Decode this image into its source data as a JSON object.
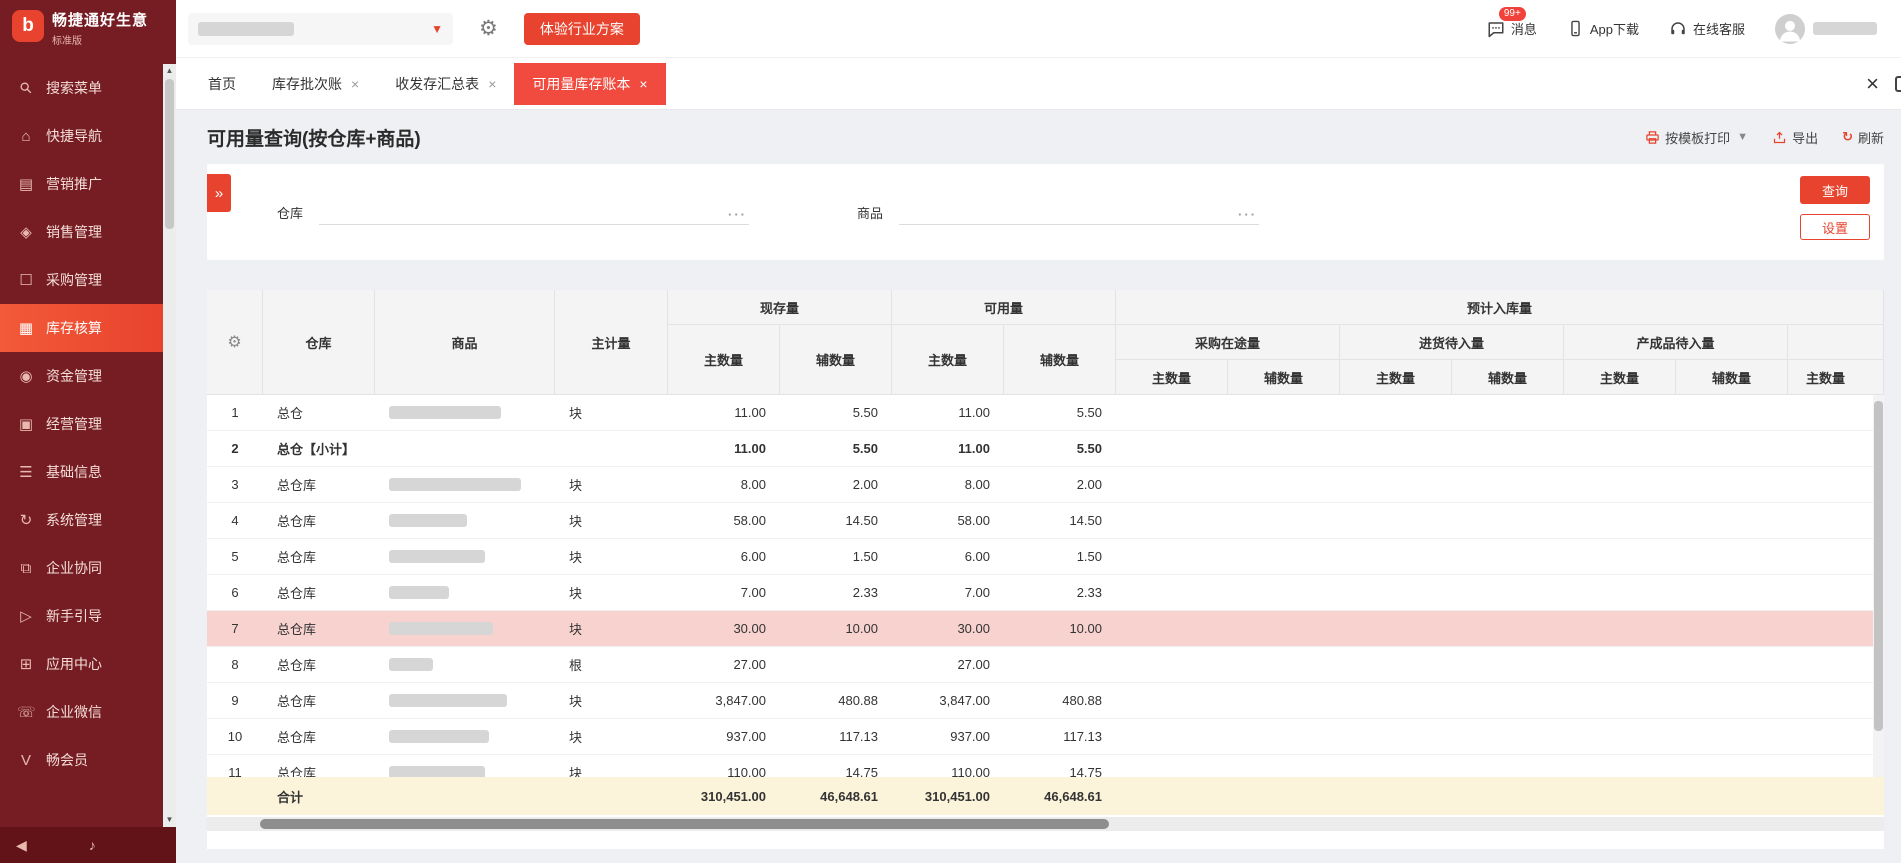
{
  "colors": {
    "accent": "#e8432e",
    "sidebar_bg": "#761d23",
    "active_tab": "#f04b3e",
    "highlight_row": "#f7d2cf",
    "total_row_bg": "#fcf4da"
  },
  "sidebar": {
    "logo_title": "畅捷通好生意",
    "logo_badge": "标准版",
    "items": [
      {
        "name": "search-menu",
        "label": "搜索菜单"
      },
      {
        "name": "quick-nav",
        "label": "快捷导航"
      },
      {
        "name": "marketing",
        "label": "营销推广"
      },
      {
        "name": "sales",
        "label": "销售管理"
      },
      {
        "name": "purchase",
        "label": "采购管理"
      },
      {
        "name": "inventory-accounting",
        "label": "库存核算",
        "active": true
      },
      {
        "name": "funds",
        "label": "资金管理"
      },
      {
        "name": "operations",
        "label": "经营管理"
      },
      {
        "name": "basic-info",
        "label": "基础信息"
      },
      {
        "name": "system",
        "label": "系统管理"
      },
      {
        "name": "enterprise-collab",
        "label": "企业协同"
      },
      {
        "name": "beginner-guide",
        "label": "新手引导"
      },
      {
        "name": "app-center",
        "label": "应用中心"
      },
      {
        "name": "enterprise-wechat",
        "label": "企业微信"
      },
      {
        "name": "member",
        "label": "畅会员"
      }
    ]
  },
  "topbar": {
    "trial_button": "体验行业方案",
    "messages_label": "消息",
    "messages_badge": "99+",
    "app_download_label": "App下载",
    "support_label": "在线客服"
  },
  "tabs": [
    {
      "label": "首页"
    },
    {
      "label": "库存批次账"
    },
    {
      "label": "收发存汇总表"
    },
    {
      "label": "可用量库存账本"
    }
  ],
  "page": {
    "title": "可用量查询(按仓库+商品)",
    "print_label": "按模板打印",
    "export_label": "导出",
    "refresh_label": "刷新"
  },
  "filters": {
    "warehouse_label": "仓库",
    "goods_label": "商品",
    "ellipsis": "···",
    "query_button": "查询",
    "settings_button": "设置"
  },
  "table": {
    "header": {
      "warehouse": "仓库",
      "goods": "商品",
      "unit": "主计量",
      "current": "现存量",
      "available": "可用量",
      "expected": "预计入库量",
      "purchase_transit": "采购在途量",
      "incoming": "进货待入量",
      "finished": "产成品待入量",
      "main": "主数量",
      "aux": "辅数量"
    },
    "rows": [
      {
        "seq": "1",
        "warehouse": "总仓",
        "goods_blob": 112,
        "unit": "块",
        "cur_main": "11.00",
        "cur_aux": "5.50",
        "avail_main": "11.00",
        "avail_aux": "5.50"
      },
      {
        "seq": "2",
        "warehouse": "总仓【小计】",
        "subtotal": true,
        "cur_main": "11.00",
        "cur_aux": "5.50",
        "avail_main": "11.00",
        "avail_aux": "5.50"
      },
      {
        "seq": "3",
        "warehouse": "总仓库",
        "goods_blob": 132,
        "unit": "块",
        "cur_main": "8.00",
        "cur_aux": "2.00",
        "avail_main": "8.00",
        "avail_aux": "2.00"
      },
      {
        "seq": "4",
        "warehouse": "总仓库",
        "goods_blob": 78,
        "unit": "块",
        "cur_main": "58.00",
        "cur_aux": "14.50",
        "avail_main": "58.00",
        "avail_aux": "14.50"
      },
      {
        "seq": "5",
        "warehouse": "总仓库",
        "goods_blob": 96,
        "unit": "块",
        "cur_main": "6.00",
        "cur_aux": "1.50",
        "avail_main": "6.00",
        "avail_aux": "1.50"
      },
      {
        "seq": "6",
        "warehouse": "总仓库",
        "goods_blob": 60,
        "unit": "块",
        "cur_main": "7.00",
        "cur_aux": "2.33",
        "avail_main": "7.00",
        "avail_aux": "2.33"
      },
      {
        "seq": "7",
        "warehouse": "总仓库",
        "goods_blob": 104,
        "unit": "块",
        "highlight": true,
        "cur_main": "30.00",
        "cur_aux": "10.00",
        "avail_main": "30.00",
        "avail_aux": "10.00"
      },
      {
        "seq": "8",
        "warehouse": "总仓库",
        "goods_blob": 44,
        "unit": "根",
        "cur_main": "27.00",
        "avail_main": "27.00"
      },
      {
        "seq": "9",
        "warehouse": "总仓库",
        "goods_blob": 118,
        "unit": "块",
        "cur_main": "3,847.00",
        "cur_aux": "480.88",
        "avail_main": "3,847.00",
        "avail_aux": "480.88"
      },
      {
        "seq": "10",
        "warehouse": "总仓库",
        "goods_blob": 100,
        "unit": "块",
        "cur_main": "937.00",
        "cur_aux": "117.13",
        "avail_main": "937.00",
        "avail_aux": "117.13"
      },
      {
        "seq": "11",
        "warehouse": "总仓库",
        "goods_blob": 96,
        "unit": "块",
        "cur_main": "110.00",
        "cur_aux": "14.75",
        "avail_main": "110.00",
        "avail_aux": "14.75"
      }
    ],
    "total_label": "合计",
    "total": {
      "cur_main": "310,451.00",
      "cur_aux": "46,648.61",
      "avail_main": "310,451.00",
      "avail_aux": "46,648.61"
    }
  }
}
